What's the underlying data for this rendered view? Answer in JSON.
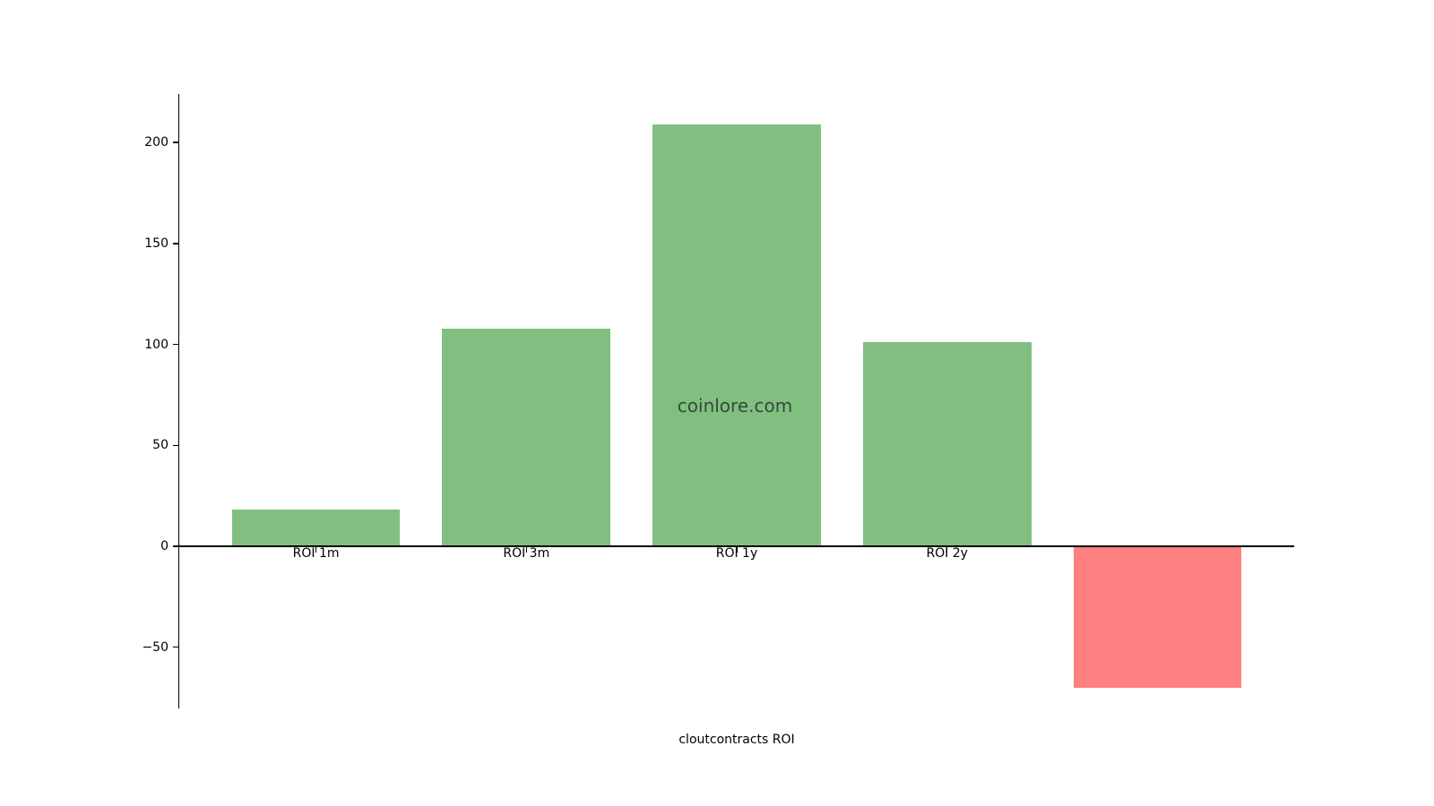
{
  "chart_data": {
    "type": "bar",
    "title": "cloutcontracts ROI",
    "watermark": "coinlore.com",
    "categories": [
      "ROI 1m",
      "ROI 3m",
      "ROI 1y",
      "ROI 2y",
      ""
    ],
    "values": [
      18,
      108,
      209,
      101,
      -70
    ],
    "yticks": [
      200,
      150,
      100,
      50,
      0,
      -50
    ],
    "xlim": [
      -0.65,
      4.65
    ],
    "ylim": [
      -80.3,
      224
    ],
    "bar_width": 0.8,
    "positive_color": "#80bf80",
    "negative_color": "#ff8080",
    "axis_color": "#000000",
    "text_color": "#000000",
    "watermark_color": "#37493c",
    "background": "#ffffff",
    "grid": false,
    "legend": false,
    "xlabel": "",
    "ylabel": ""
  }
}
